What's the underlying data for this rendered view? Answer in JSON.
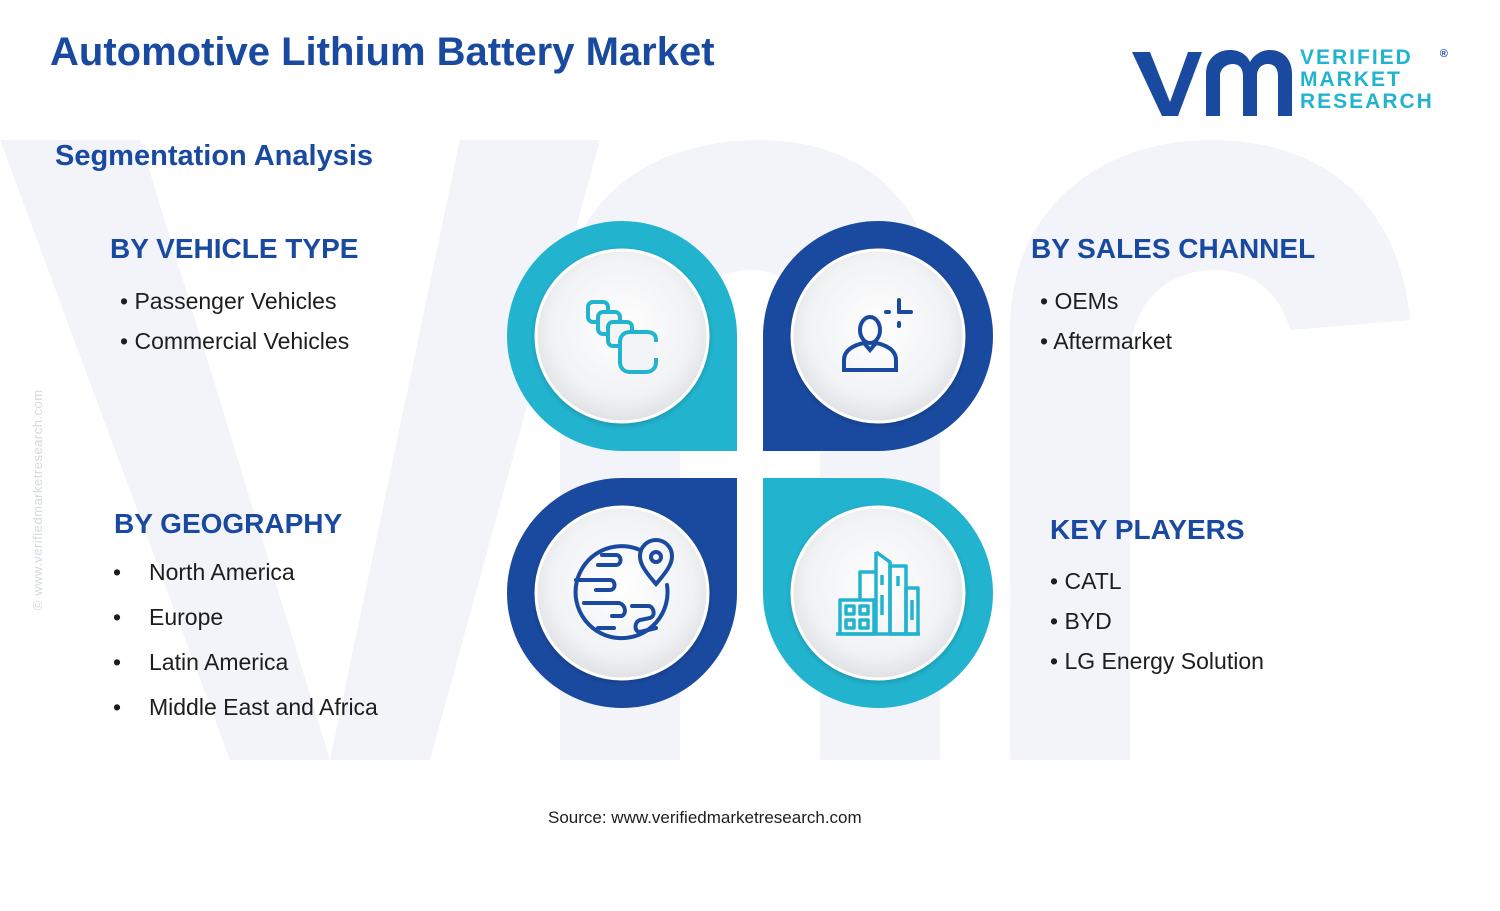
{
  "title": "Automotive Lithium Battery Market",
  "subtitle": "Segmentation Analysis",
  "logo": {
    "line1": "VERIFIED",
    "line2": "MARKET",
    "line3": "RESEARCH",
    "registered": "®"
  },
  "side_text": "© www.verifiedmarketresearch.com",
  "segments": {
    "vehicle_type": {
      "heading": "BY VEHICLE TYPE",
      "items": [
        "Passenger Vehicles",
        "Commercial Vehicles"
      ],
      "icon": "stacked-squares-icon"
    },
    "sales_channel": {
      "heading": "BY SALES CHANNEL",
      "items": [
        "OEMs",
        "Aftermarket"
      ],
      "icon": "person-plus-icon"
    },
    "geography": {
      "heading": "BY GEOGRAPHY",
      "items": [
        "North America",
        "Europe",
        "Latin America",
        "Middle East and Africa"
      ],
      "icon": "globe-pin-icon"
    },
    "key_players": {
      "heading": "KEY PLAYERS",
      "items": [
        "CATL",
        "BYD",
        "LG Energy Solution"
      ],
      "icon": "buildings-icon"
    }
  },
  "colors": {
    "navy": "#1a4aa0",
    "cyan": "#22b4cf",
    "text": "#1d1d1d"
  },
  "source": "Source: www.verifiedmarketresearch.com"
}
